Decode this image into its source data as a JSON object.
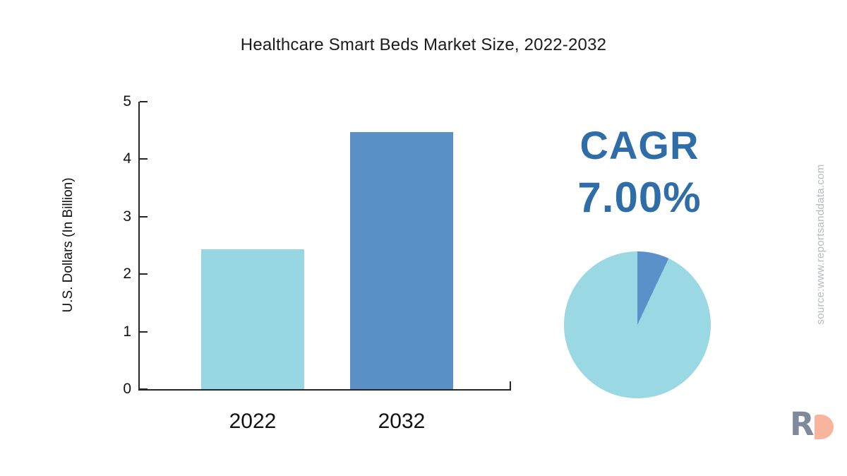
{
  "title": "Healthcare Smart Beds Market Size, 2022-2032",
  "source_note": "source:www.reportsanddata.com",
  "cagr": {
    "label": "CAGR",
    "value": "7.00%",
    "percent": 7,
    "color": "#2e6da7"
  },
  "logo": {
    "letter_r": "R",
    "r_color": "#7e8a9b",
    "d_color": "#f8b49d"
  },
  "colors": {
    "axis": "#262626",
    "bar_2022": "#97d7e3",
    "bar_2032": "#5a90c6",
    "pie_slice": "#5b90c8",
    "pie_main": "#9ad8e4",
    "source_text": "#b5babd",
    "text": "#1b1b1b"
  },
  "chart_data": [
    {
      "type": "bar",
      "title": "Healthcare Smart Beds Market Size, 2022-2032",
      "categories": [
        "2022",
        "2032"
      ],
      "values": [
        2.43,
        4.47
      ],
      "xlabel": "",
      "ylabel": "U.S. Dollars (In Billion)",
      "ylim": [
        0,
        5
      ],
      "yticks": [
        0,
        1,
        2,
        3,
        4,
        5
      ],
      "grid": false,
      "legend": false,
      "bar_colors": [
        "#97d7e3",
        "#5a90c6"
      ]
    },
    {
      "type": "pie",
      "labels": [
        "CAGR share 7.00%",
        "Remainder"
      ],
      "values": [
        7,
        93
      ],
      "colors": [
        "#5b90c8",
        "#9ad8e4"
      ],
      "start_angle_deg": 0,
      "direction": "clockwise",
      "legend": false
    }
  ]
}
